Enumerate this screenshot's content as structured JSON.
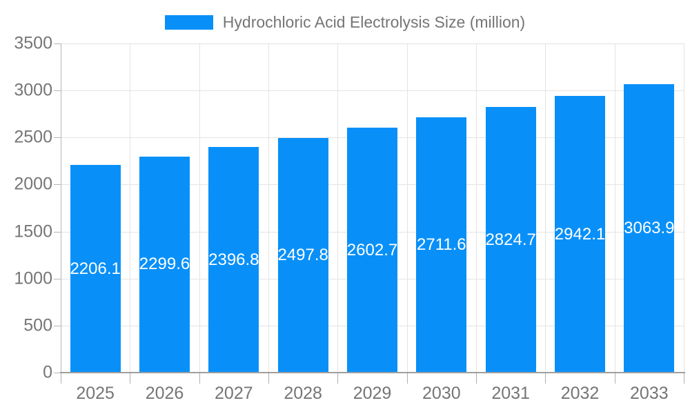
{
  "legend": {
    "position": "top-center",
    "items": [
      {
        "label": "Hydrochloric Acid Electrolysis Size (million)",
        "swatch_color": "#0990f8"
      }
    ]
  },
  "chart_data": {
    "type": "bar",
    "title": "Hydrochloric Acid Electrolysis Size (million)",
    "series_name": "Hydrochloric Acid Electrolysis Size (million)",
    "categories": [
      "2025",
      "2026",
      "2027",
      "2028",
      "2029",
      "2030",
      "2031",
      "2032",
      "2033"
    ],
    "values": [
      2206.1,
      2299.6,
      2396.8,
      2497.8,
      2602.7,
      2711.6,
      2824.7,
      2942.1,
      3063.9
    ],
    "xlabel": "",
    "ylabel": "",
    "ylim": [
      0,
      3500
    ],
    "yticks": [
      0,
      500,
      1000,
      1500,
      2000,
      2500,
      3000,
      3500
    ],
    "grid": true,
    "legend_position": "top",
    "bar_color": "#0990f8",
    "data_label_color": "#ffffff",
    "axis_text_color": "#757575",
    "gridline_color": "#e3e3e3",
    "axis_line_color": "#9e9e9e"
  }
}
